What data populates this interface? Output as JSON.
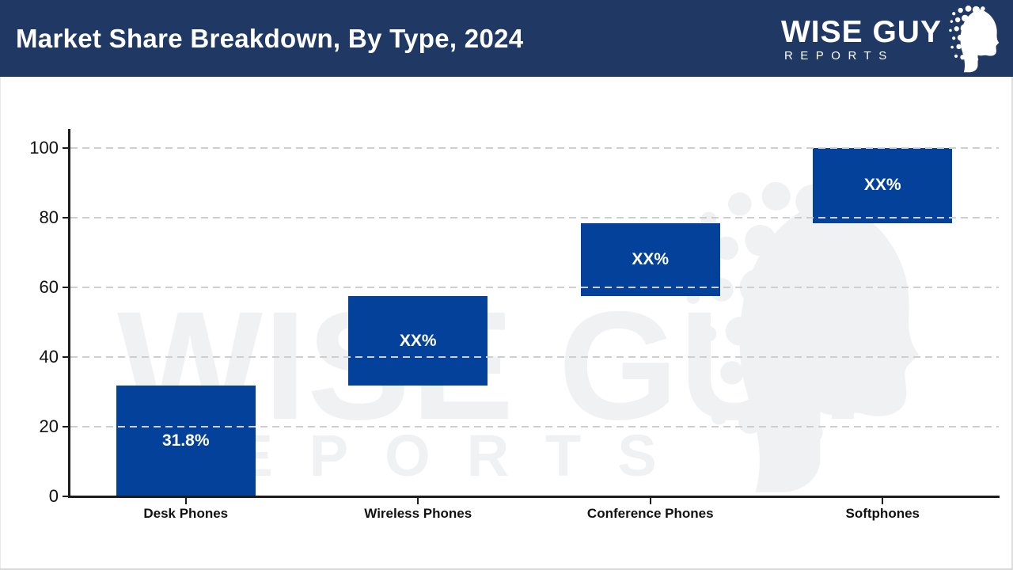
{
  "header": {
    "title": "Market Share Breakdown, By Type, 2024",
    "bg_color": "#1f3864",
    "logo": {
      "line1": "WISE GUY",
      "line2": "REPORTS"
    }
  },
  "watermark": {
    "line1": "WISE GUY",
    "line2": "REPORTS"
  },
  "chart_data": {
    "type": "waterfall",
    "title": "Market Share Breakdown, By Type, 2024",
    "categories": [
      "Desk Phones",
      "Wireless Phones",
      "Conference Phones",
      "Softphones"
    ],
    "segments": [
      {
        "category": "Desk Phones",
        "start": 0,
        "end": 31.8,
        "label": "31.8%"
      },
      {
        "category": "Wireless Phones",
        "start": 31.8,
        "end": 57.5,
        "label": "XX%"
      },
      {
        "category": "Conference Phones",
        "start": 57.5,
        "end": 78.5,
        "label": "XX%"
      },
      {
        "category": "Softphones",
        "start": 78.5,
        "end": 100,
        "label": "XX%"
      }
    ],
    "ylim": [
      0,
      100
    ],
    "yticks": [
      0,
      20,
      40,
      60,
      80,
      100
    ],
    "grid": "dashed horizontal, drawn over bars",
    "legend": "none",
    "bar_color": "#04419b",
    "bar_label_color": "#ffffff"
  }
}
